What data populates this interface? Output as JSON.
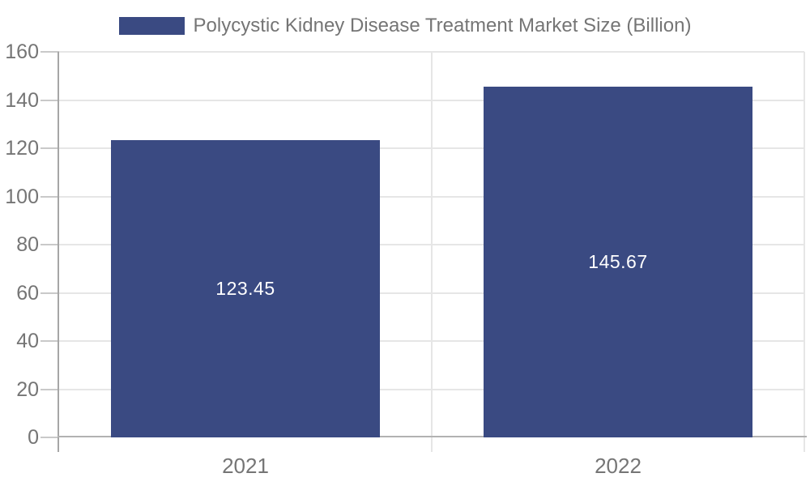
{
  "legend": {
    "label": "Polycystic Kidney Disease Treatment Market Size (Billion)"
  },
  "chart_data": {
    "type": "bar",
    "title": "Polycystic Kidney Disease Treatment Market Size (Billion)",
    "categories": [
      "2021",
      "2022"
    ],
    "series": [
      {
        "name": "Polycystic Kidney Disease Treatment Market Size (Billion)",
        "values": [
          123.45,
          145.67
        ],
        "value_labels": [
          "123.45",
          "145.67"
        ]
      }
    ],
    "xlabel": "",
    "ylabel": "",
    "ylim": [
      0,
      160
    ],
    "ytick_step": 20,
    "ytick_labels": [
      "0",
      "20",
      "40",
      "60",
      "80",
      "100",
      "120",
      "140",
      "160"
    ],
    "grid": "on",
    "legend_position": "top",
    "colors": {
      "bar": "#3a4a82",
      "gridline": "#e6e6e6",
      "y_axis_line": "#a6a6a6",
      "x_axis_line": "#b2b2b2",
      "tick": "#c9c9c9",
      "axis_text": "#757575",
      "value_text": "#ffffff",
      "background": "#ffffff"
    }
  }
}
